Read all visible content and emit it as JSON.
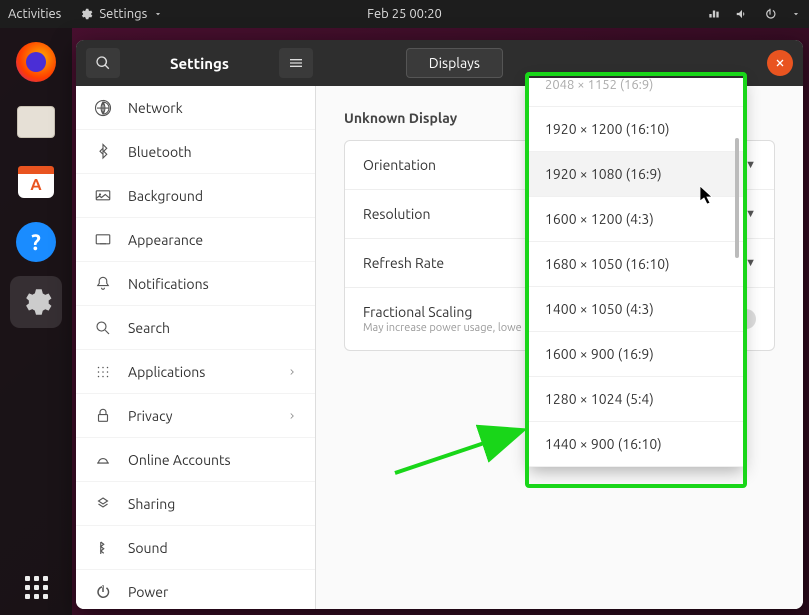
{
  "topbar": {
    "activities": "Activities",
    "app_name": "Settings",
    "datetime": "Feb 25  00:20"
  },
  "window": {
    "title": "Settings",
    "displays_btn": "Displays"
  },
  "sidebar": {
    "items": [
      {
        "label": "Network"
      },
      {
        "label": "Bluetooth"
      },
      {
        "label": "Background"
      },
      {
        "label": "Appearance"
      },
      {
        "label": "Notifications"
      },
      {
        "label": "Search"
      },
      {
        "label": "Applications",
        "chev": true
      },
      {
        "label": "Privacy",
        "chev": true
      },
      {
        "label": "Online Accounts"
      },
      {
        "label": "Sharing"
      },
      {
        "label": "Sound"
      },
      {
        "label": "Power"
      }
    ]
  },
  "content": {
    "section": "Unknown Display",
    "rows": {
      "orientation": "Orientation",
      "resolution": "Resolution",
      "refresh": "Refresh Rate",
      "frac": "Fractional Scaling",
      "frac_sub": "May increase power usage, lowe"
    }
  },
  "dropdown": {
    "items": [
      {
        "label": "2048 × 1152 (16:9)",
        "cut": true
      },
      {
        "label": "1920 × 1200 (16:10)"
      },
      {
        "label": "1920 × 1080 (16:9)",
        "sel": true
      },
      {
        "label": "1600 × 1200 (4:3)"
      },
      {
        "label": "1680 × 1050 (16:10)"
      },
      {
        "label": "1400 × 1050 (4:3)"
      },
      {
        "label": "1600 × 900 (16:9)"
      },
      {
        "label": "1280 × 1024 (5:4)"
      },
      {
        "label": "1440 × 900 (16:10)"
      }
    ]
  },
  "colors": {
    "highlight": "#19d619",
    "arrow": "#19d619",
    "accent": "#e95420"
  }
}
